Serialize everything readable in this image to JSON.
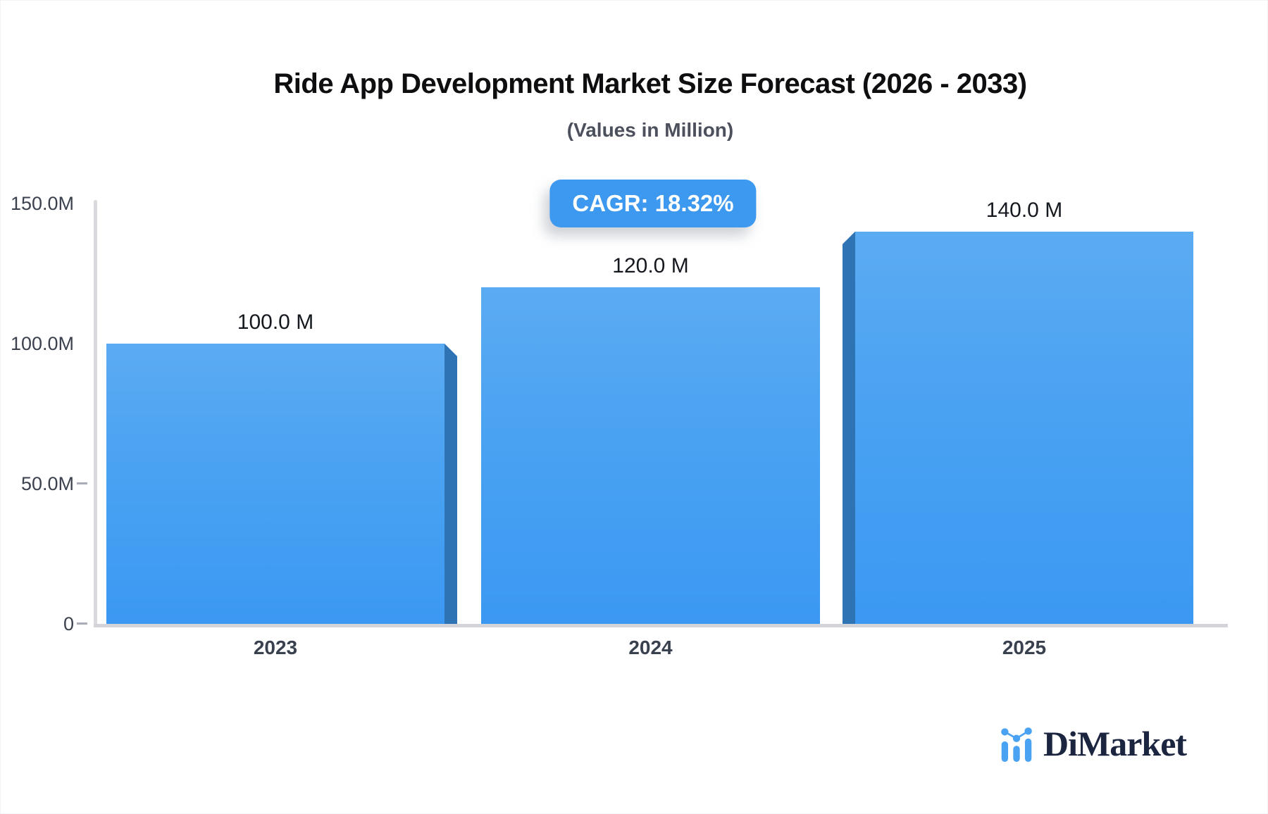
{
  "header": {
    "title": "Ride App Development Market Size Forecast (2026 - 2033)",
    "subtitle": "(Values in Million)"
  },
  "badge": {
    "label": "CAGR: 18.32%"
  },
  "chart_data": {
    "type": "bar",
    "title": "Ride App Development Market Size Forecast (2026 - 2033)",
    "subtitle": "(Values in Million)",
    "cagr_percent": 18.32,
    "categories": [
      "2023",
      "2024",
      "2025"
    ],
    "values": [
      100.0,
      120.0,
      140.0
    ],
    "value_labels": [
      "100.0 M",
      "120.0 M",
      "140.0 M"
    ],
    "unit": "Million",
    "ylim": [
      0,
      150
    ],
    "yticks": [
      0,
      50,
      100,
      150
    ],
    "ytick_labels": [
      "0",
      "50.0M",
      "100.0M",
      "150.0M"
    ],
    "grid": false,
    "legend": false,
    "bar_color_top": "#5babf2",
    "bar_color_bottom": "#3b98f2",
    "bar_side_color": "#2e74b5",
    "axis_line_color": "#d4d6dc"
  },
  "logo": {
    "text": "DiMarket",
    "icon": "bar-chart-logo-icon"
  },
  "colors": {
    "accent_blue": "#3d98ef",
    "text_dark": "#15191f"
  }
}
